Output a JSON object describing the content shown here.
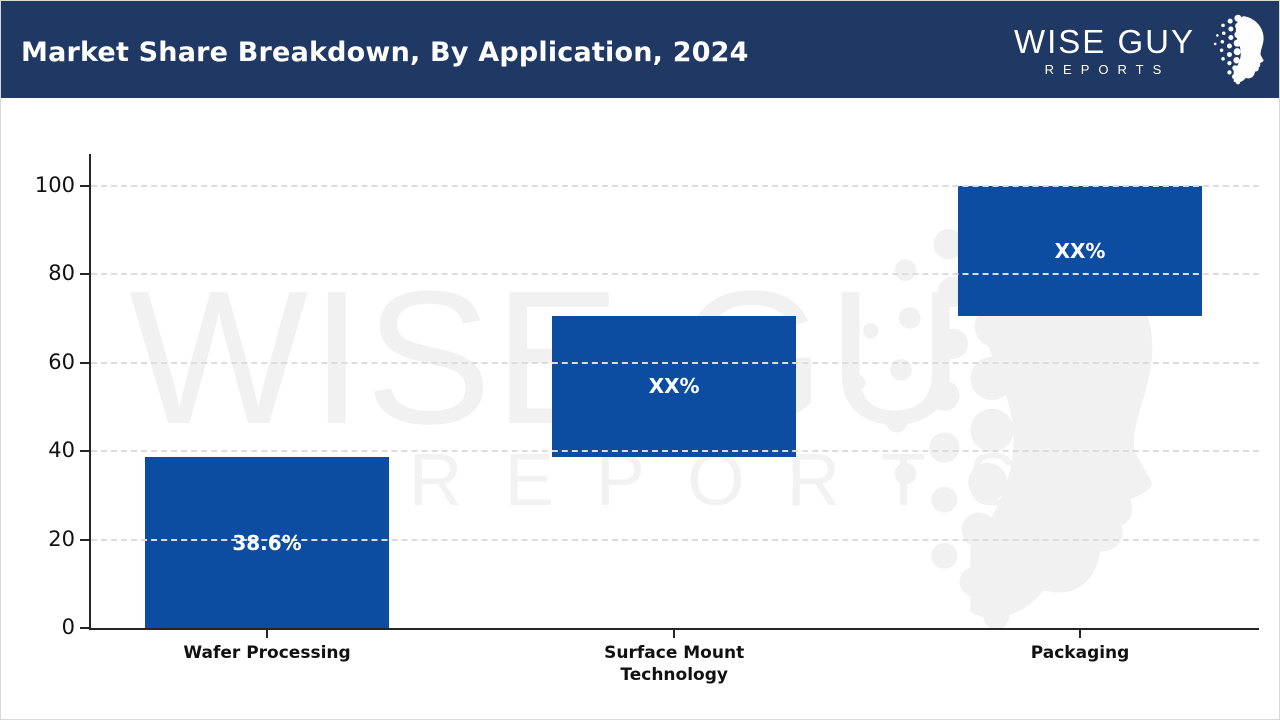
{
  "header": {
    "title": "Market Share Breakdown, By Application, 2024",
    "background": "#1f3864",
    "brand": {
      "line1": "WISE GUY",
      "line2": "REPORTS"
    }
  },
  "watermark": {
    "line1": "WISE GUY",
    "line2": "REPORTS"
  },
  "chart_data": {
    "type": "bar",
    "subtype": "waterfall",
    "title": "Market Share Breakdown, By Application, 2024",
    "categories": [
      "Wafer Processing",
      "Surface Mount Technology",
      "Packaging"
    ],
    "category_display": [
      "Wafer Processing",
      "Surface Mount\nTechnology",
      "Packaging"
    ],
    "segments": [
      {
        "start": 0,
        "end": 38.6,
        "value_label": "38.6%"
      },
      {
        "start": 38.6,
        "end": 70.7,
        "value_label": "XX%"
      },
      {
        "start": 70.7,
        "end": 100,
        "value_label": "XX%"
      }
    ],
    "values_estimated": [
      38.6,
      32.1,
      29.3
    ],
    "ylim": [
      0,
      100
    ],
    "yticks": [
      0,
      20,
      40,
      60,
      80,
      100
    ],
    "xlabel": "",
    "ylabel": "",
    "grid": "horizontal dashed, drawn above bars",
    "legend": "none",
    "bar_color": "#0d4da1",
    "value_label_color": "#ffffff",
    "axis_color": "#262626",
    "grid_color": "#dcdcdc"
  }
}
